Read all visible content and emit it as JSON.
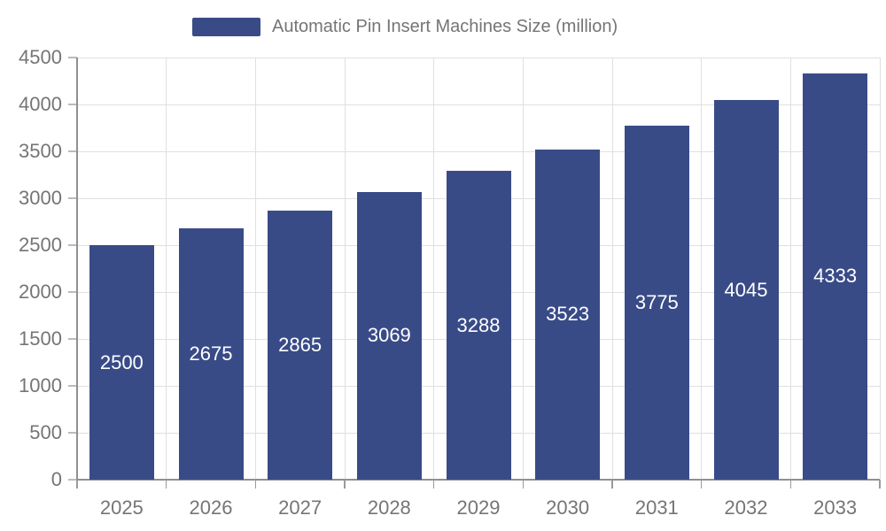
{
  "chart_data": {
    "type": "bar",
    "title": "Automatic Pin Insert Machines Size (million)",
    "categories": [
      "2025",
      "2026",
      "2027",
      "2028",
      "2029",
      "2030",
      "2031",
      "2032",
      "2033"
    ],
    "values": [
      2500,
      2675,
      2865,
      3069,
      3288,
      3523,
      3775,
      4045,
      4333
    ],
    "xlabel": "",
    "ylabel": "",
    "ylim": [
      0,
      4500
    ],
    "yticks": [
      0,
      500,
      1000,
      1500,
      2000,
      2500,
      3000,
      3500,
      4000,
      4500
    ],
    "grid": true,
    "legend_position": "top",
    "bar_labels_inside": true
  },
  "colors": {
    "bar": "#394B87",
    "bar_label_text": "#ffffff",
    "gridline": "#E0E0E0",
    "axis_line": "#909090",
    "y_tick_mark": "#BBBBBB",
    "x_tick_mark": "#9A9A9A",
    "tick_label_text": "#757575",
    "legend_text": "#757575",
    "background": "#ffffff"
  }
}
